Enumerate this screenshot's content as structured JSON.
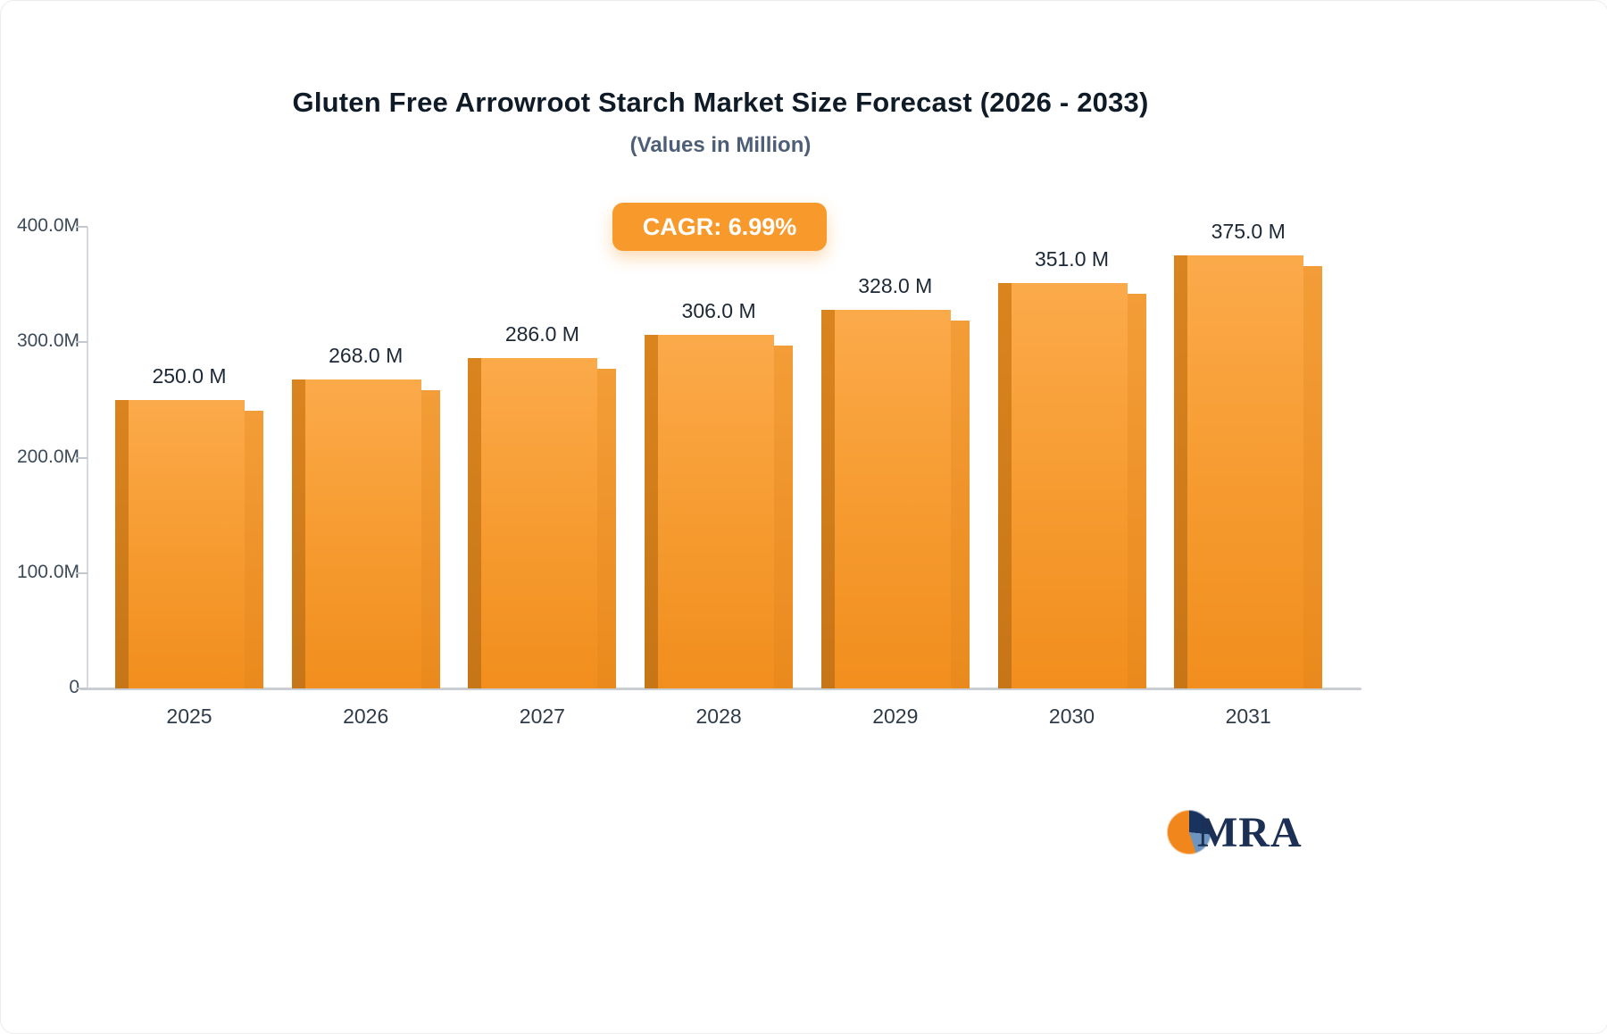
{
  "title": "Gluten Free Arrowroot Starch Market Size Forecast (2026 - 2033)",
  "subtitle": "(Values in Million)",
  "cagr_badge": "CAGR: 6.99%",
  "logo_text": "MRA",
  "colors": {
    "bar_main": "#f79d33",
    "bar_side_left": "#c67517",
    "bar_side_right": "#ea8a1d",
    "badge": "#f8992c",
    "title_text": "#101b28",
    "subtitle_text": "#4d5e77",
    "axis_line": "#c9ced5",
    "logo_navy": "#18335f",
    "logo_blue": "#6d95bd",
    "logo_orange": "#f0861c"
  },
  "chart_data": {
    "type": "bar",
    "title": "Gluten Free Arrowroot Starch Market Size Forecast (2026 - 2033)",
    "subtitle": "(Values in Million)",
    "xlabel": "",
    "ylabel": "",
    "categories": [
      "2025",
      "2026",
      "2027",
      "2028",
      "2029",
      "2030",
      "2031"
    ],
    "values": [
      250,
      268,
      286,
      306,
      328,
      351,
      375
    ],
    "value_labels": [
      "250.0 M",
      "268.0 M",
      "286.0 M",
      "306.0 M",
      "328.0 M",
      "351.0 M",
      "375.0 M"
    ],
    "unit": "Million",
    "ylim": [
      0,
      400
    ],
    "y_ticks": [
      {
        "value": 0,
        "label": "0"
      },
      {
        "value": 100,
        "label": "100.0M"
      },
      {
        "value": 200,
        "label": "200.0M"
      },
      {
        "value": 300,
        "label": "300.0M"
      },
      {
        "value": 400,
        "label": "400.0M"
      }
    ],
    "grid": false,
    "legend": false,
    "annotations": [
      "CAGR: 6.99%"
    ]
  }
}
